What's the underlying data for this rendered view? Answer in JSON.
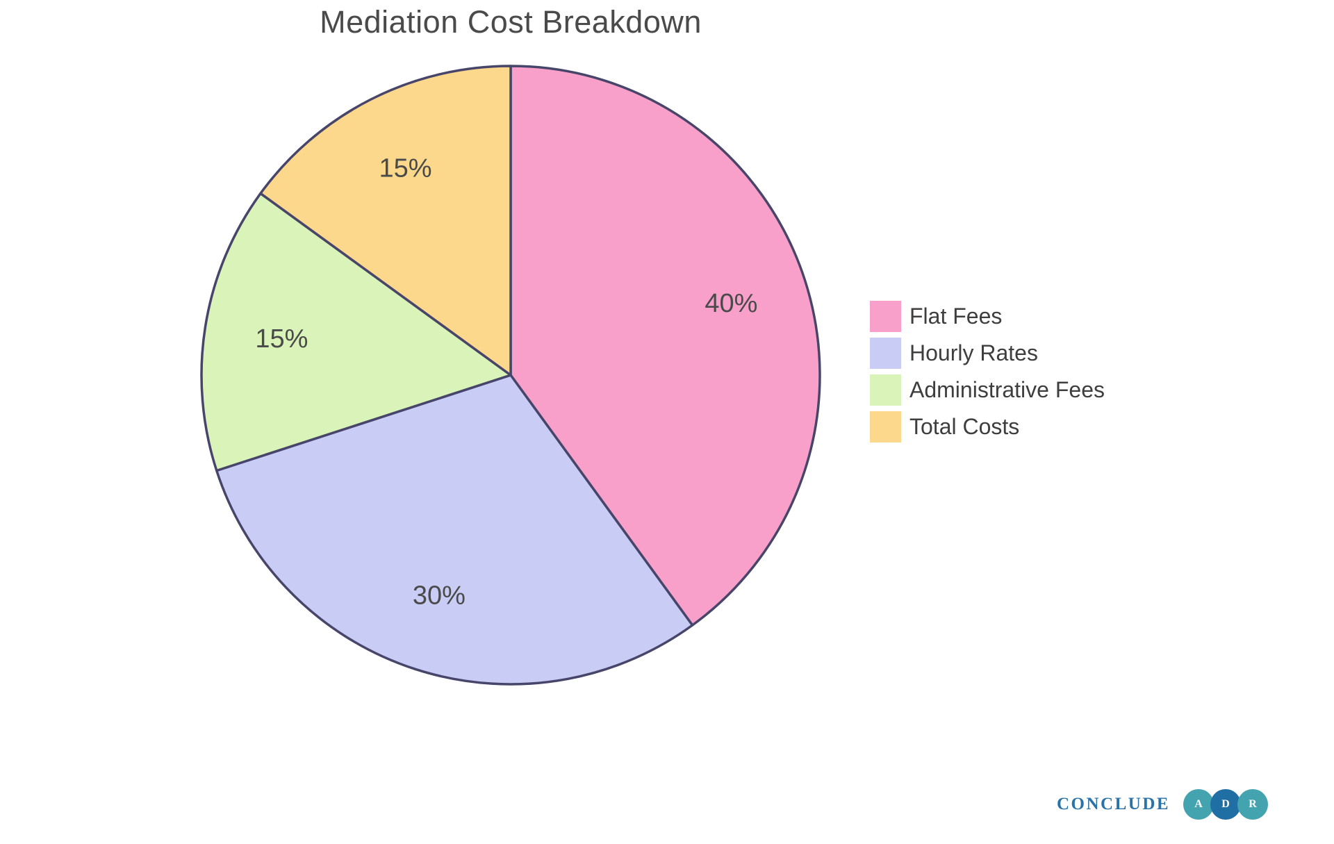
{
  "chart_data": {
    "type": "pie",
    "title": "Mediation Cost Breakdown",
    "labels": [
      "Flat Fees",
      "Hourly Rates",
      "Administrative Fees",
      "Total Costs"
    ],
    "values": [
      40,
      30,
      15,
      15
    ],
    "percent_labels": [
      "40%",
      "30%",
      "15%",
      "15%"
    ],
    "colors": [
      "#F9A0CA",
      "#C9CCF4",
      "#D9F3B8",
      "#FBD88B"
    ],
    "edge_color": "#474569",
    "start_angle_deg": 90,
    "direction": "clockwise",
    "label_distance": 0.75,
    "legend_position": "right",
    "title_color": "#4A4A4A",
    "percent_label_color": "#4A4A4A",
    "legend_text_color": "#3E3E3E"
  },
  "branding": {
    "wordmark": "CONCLUDE",
    "wordmark_color": "#2973A8",
    "badge_letters": [
      "A",
      "D",
      "R"
    ],
    "badge_colors": [
      "#43A3AE",
      "#1F6FA5",
      "#43A3AE"
    ]
  }
}
